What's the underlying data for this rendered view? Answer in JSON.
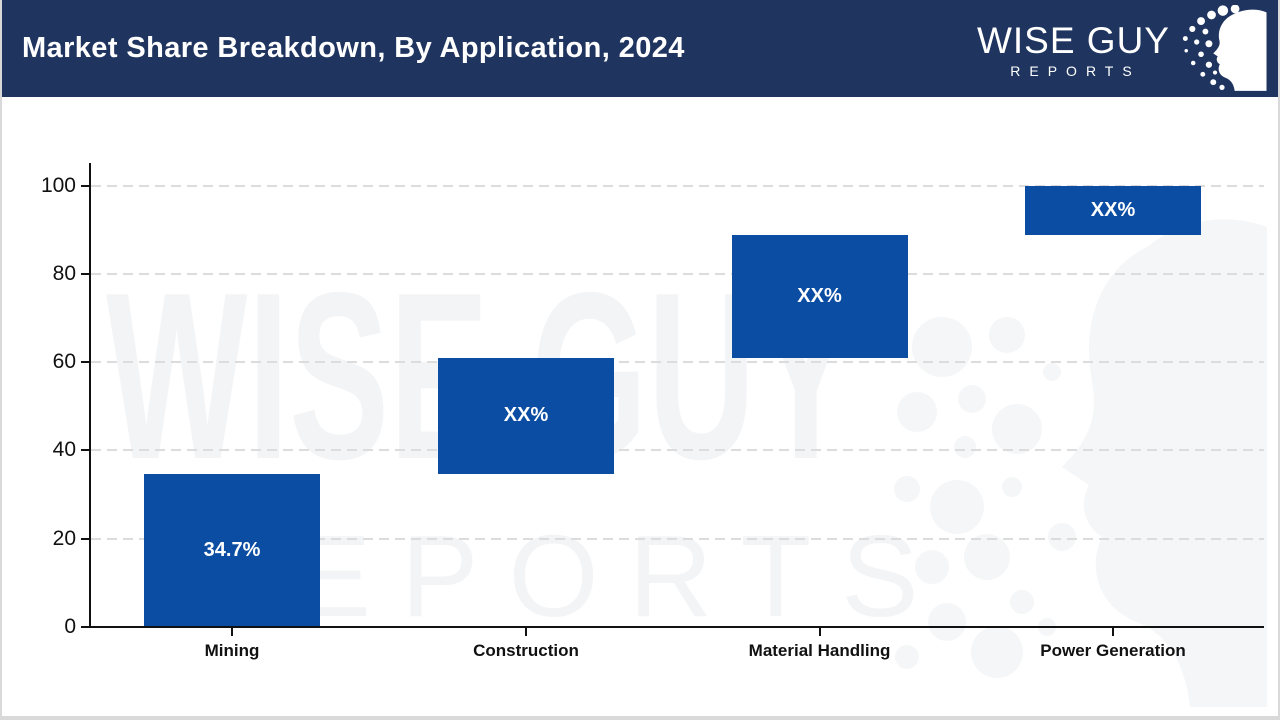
{
  "header": {
    "title": "Market Share Breakdown, By Application, 2024",
    "logo": {
      "wordmark": "WISE GUY",
      "subtext": "REPORTS"
    }
  },
  "watermark": {
    "wordmark": "WISE GUY",
    "subtext": "REPORTS"
  },
  "colors": {
    "header_bg": "#1f3560",
    "bar": "#0b4da2",
    "grid": "#dcdcdc",
    "axis": "#111111",
    "bar_label": "#ffffff",
    "tick_label": "#111111"
  },
  "chart_data": {
    "type": "bar",
    "subtype": "waterfall",
    "title": "Market Share Breakdown, By Application, 2024",
    "categories": [
      "Mining",
      "Construction",
      "Material Handling",
      "Power Generation"
    ],
    "series": [
      {
        "name": "Market share (%)",
        "segments": [
          {
            "category": "Mining",
            "start": 0,
            "end": 34.7,
            "label": "34.7%"
          },
          {
            "category": "Construction",
            "start": 34.7,
            "end": 61.0,
            "label": "XX%"
          },
          {
            "category": "Material Handling",
            "start": 61.0,
            "end": 88.8,
            "label": "XX%"
          },
          {
            "category": "Power Generation",
            "start": 88.8,
            "end": 100.0,
            "label": "XX%"
          }
        ]
      }
    ],
    "ylim": [
      0,
      105
    ],
    "yticks": [
      0,
      20,
      40,
      60,
      80,
      100
    ],
    "xlabel": "",
    "ylabel": "",
    "grid": "horizontal-dashed",
    "legend": "none"
  }
}
